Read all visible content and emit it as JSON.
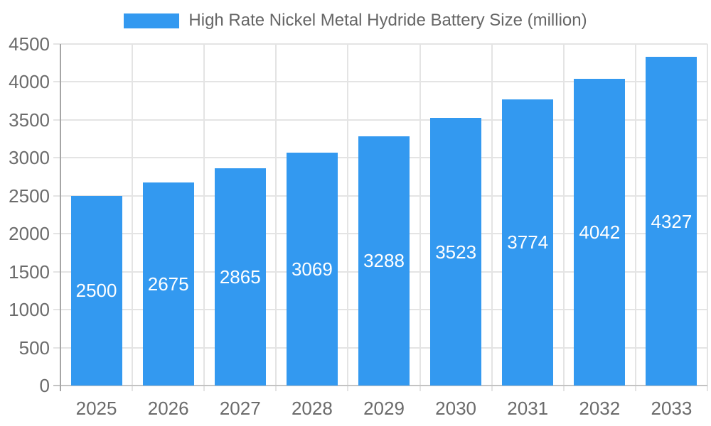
{
  "chart_data": {
    "type": "bar",
    "title": "High Rate Nickel Metal Hydride Battery Size (million)",
    "series_name": "High Rate Nickel Metal Hydride Battery Size (million)",
    "categories": [
      "2025",
      "2026",
      "2027",
      "2028",
      "2029",
      "2030",
      "2031",
      "2032",
      "2033"
    ],
    "values": [
      2500,
      2675,
      2865,
      3069,
      3288,
      3523,
      3774,
      4042,
      4327
    ],
    "xlabel": "",
    "ylabel": "",
    "ylim": [
      0,
      4500
    ],
    "yticks": [
      0,
      500,
      1000,
      1500,
      2000,
      2500,
      3000,
      3500,
      4000,
      4500
    ],
    "grid": true,
    "legend_position": "top",
    "value_label_position": "inside-center",
    "colors": {
      "bar": "#3399F0",
      "value_text": "#FFFFFF",
      "tick_text": "#6B6B6B",
      "legend_text": "#666666",
      "gridline": "#E4E4E4",
      "baseline": "#C3C3C3",
      "axis_line": "#A6A6A6",
      "background": "#FFFFFF"
    }
  }
}
